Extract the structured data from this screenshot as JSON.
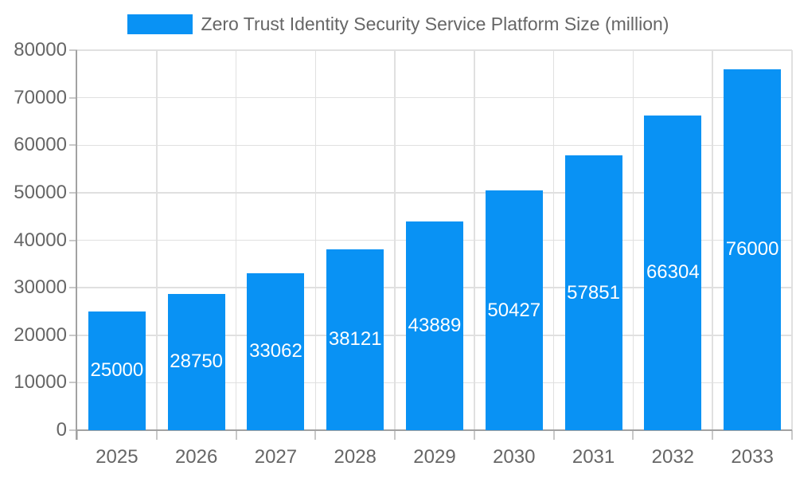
{
  "chart_data": {
    "type": "bar",
    "title": "",
    "legend": {
      "label": "Zero Trust Identity Security Service Platform Size (million)",
      "position": "top"
    },
    "categories": [
      "2025",
      "2026",
      "2027",
      "2028",
      "2029",
      "2030",
      "2031",
      "2032",
      "2033"
    ],
    "series": [
      {
        "name": "Zero Trust Identity Security Service Platform Size (million)",
        "values": [
          25000,
          28750,
          33062,
          38121,
          43889,
          50427,
          57851,
          66304,
          76000
        ]
      }
    ],
    "value_labels_shown": true,
    "xlabel": "",
    "ylabel": "",
    "ylim": [
      0,
      80000
    ],
    "yticks": [
      0,
      10000,
      20000,
      30000,
      40000,
      50000,
      60000,
      70000,
      80000
    ],
    "grid": "both",
    "colors": {
      "bar": "#0992f4",
      "value_label": "#ffffff",
      "axis": "#a2a2a2",
      "tick": "#c9c9c9",
      "gridline": "#e0e0e0",
      "tick_text": "#666666",
      "legend_text": "#666666",
      "background": "#ffffff"
    }
  }
}
